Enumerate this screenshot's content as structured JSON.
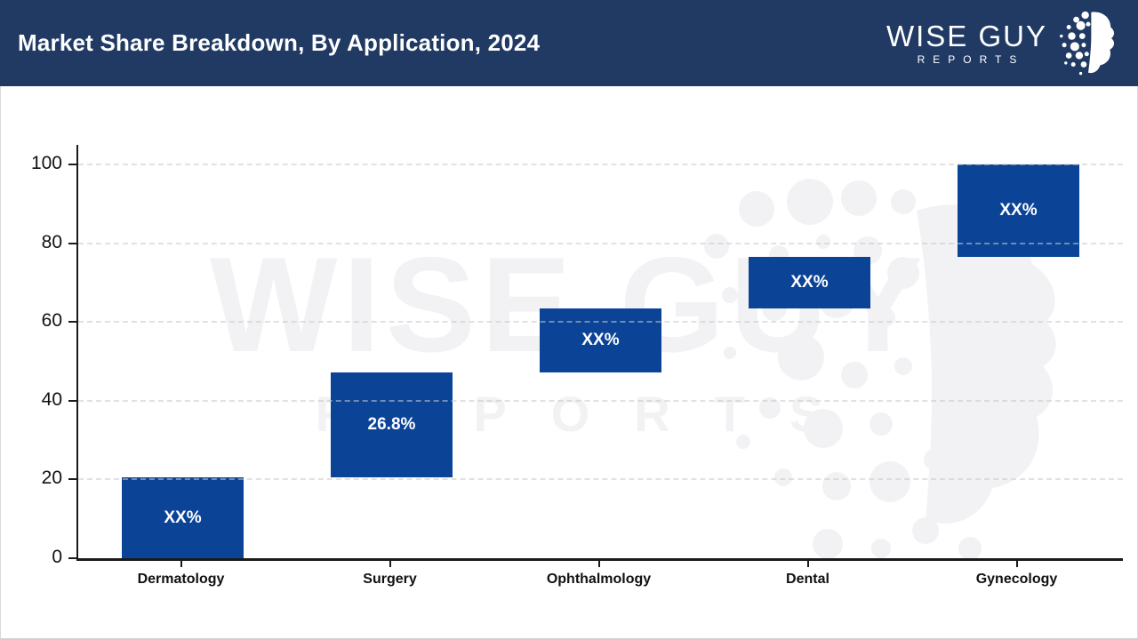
{
  "header": {
    "title": "Market Share Breakdown, By Application, 2024",
    "logo": {
      "line1": "WISE GUY",
      "line2": "REPORTS"
    }
  },
  "watermark": {
    "line1": "WISE GUY",
    "line2": "REPORTS"
  },
  "chart_data": {
    "type": "bar",
    "subtype": "waterfall-floating-bars",
    "title": "Market Share Breakdown, By Application, 2024",
    "categories": [
      "Dermatology",
      "Surgery",
      "Ophthalmology",
      "Dental",
      "Gynecology"
    ],
    "segments": [
      {
        "category": "Dermatology",
        "start": 0,
        "end": 20.5,
        "label": "XX%"
      },
      {
        "category": "Surgery",
        "start": 20.5,
        "end": 47.3,
        "label": "26.8%"
      },
      {
        "category": "Ophthalmology",
        "start": 47.3,
        "end": 63.4,
        "label": "XX%"
      },
      {
        "category": "Dental",
        "start": 63.4,
        "end": 76.5,
        "label": "XX%"
      },
      {
        "category": "Gynecology",
        "start": 76.5,
        "end": 100,
        "label": "XX%"
      }
    ],
    "yticks": [
      0,
      20,
      40,
      60,
      80,
      100
    ],
    "ylim": [
      0,
      105
    ],
    "grid": true,
    "grid_style": "dashed",
    "legend": false,
    "bar_color": "#0B4396"
  },
  "colors": {
    "header_bg": "#203A64",
    "bar": "#0B4396",
    "axis": "#1a1a1a",
    "grid": "#c8c8c8",
    "watermark": "#f2f2f4",
    "background": "#ffffff",
    "text": "#111111",
    "bar_label_text": "#ffffff"
  },
  "icons": {
    "logo_face": "dotted-head-profile",
    "watermark_face": "dotted-head-profile"
  }
}
